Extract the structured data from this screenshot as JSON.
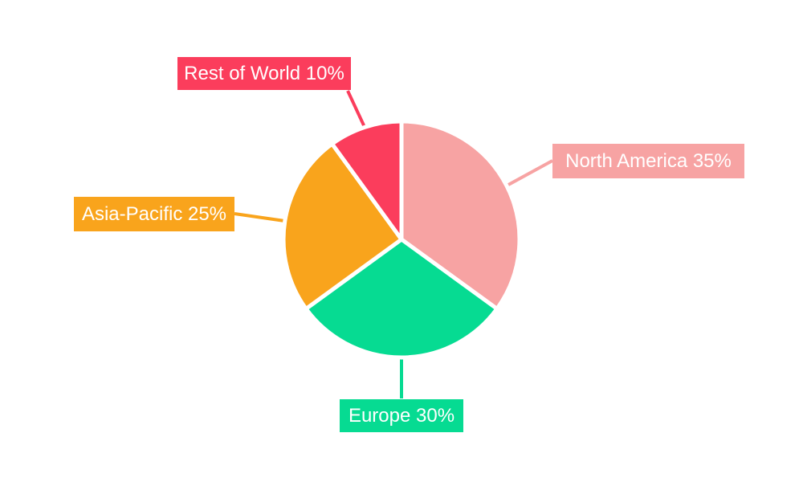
{
  "background_color": "#ffffff",
  "chart_data": {
    "type": "pie",
    "title": "",
    "start_angle_deg": 0,
    "direction": "clockwise",
    "total": 100,
    "label_text_color": "#ffffff",
    "separator_color": "#ffffff",
    "slices": [
      {
        "name": "North America",
        "value": 35,
        "percent_label": "North America 35%",
        "color": "#F7A3A3"
      },
      {
        "name": "Europe",
        "value": 30,
        "percent_label": "Europe 30%",
        "color": "#06DB92"
      },
      {
        "name": "Asia-Pacific",
        "value": 25,
        "percent_label": "Asia-Pacific 25%",
        "color": "#F9A41C"
      },
      {
        "name": "Rest of World",
        "value": 10,
        "percent_label": "Rest of World 10%",
        "color": "#FB3D5C"
      }
    ]
  }
}
